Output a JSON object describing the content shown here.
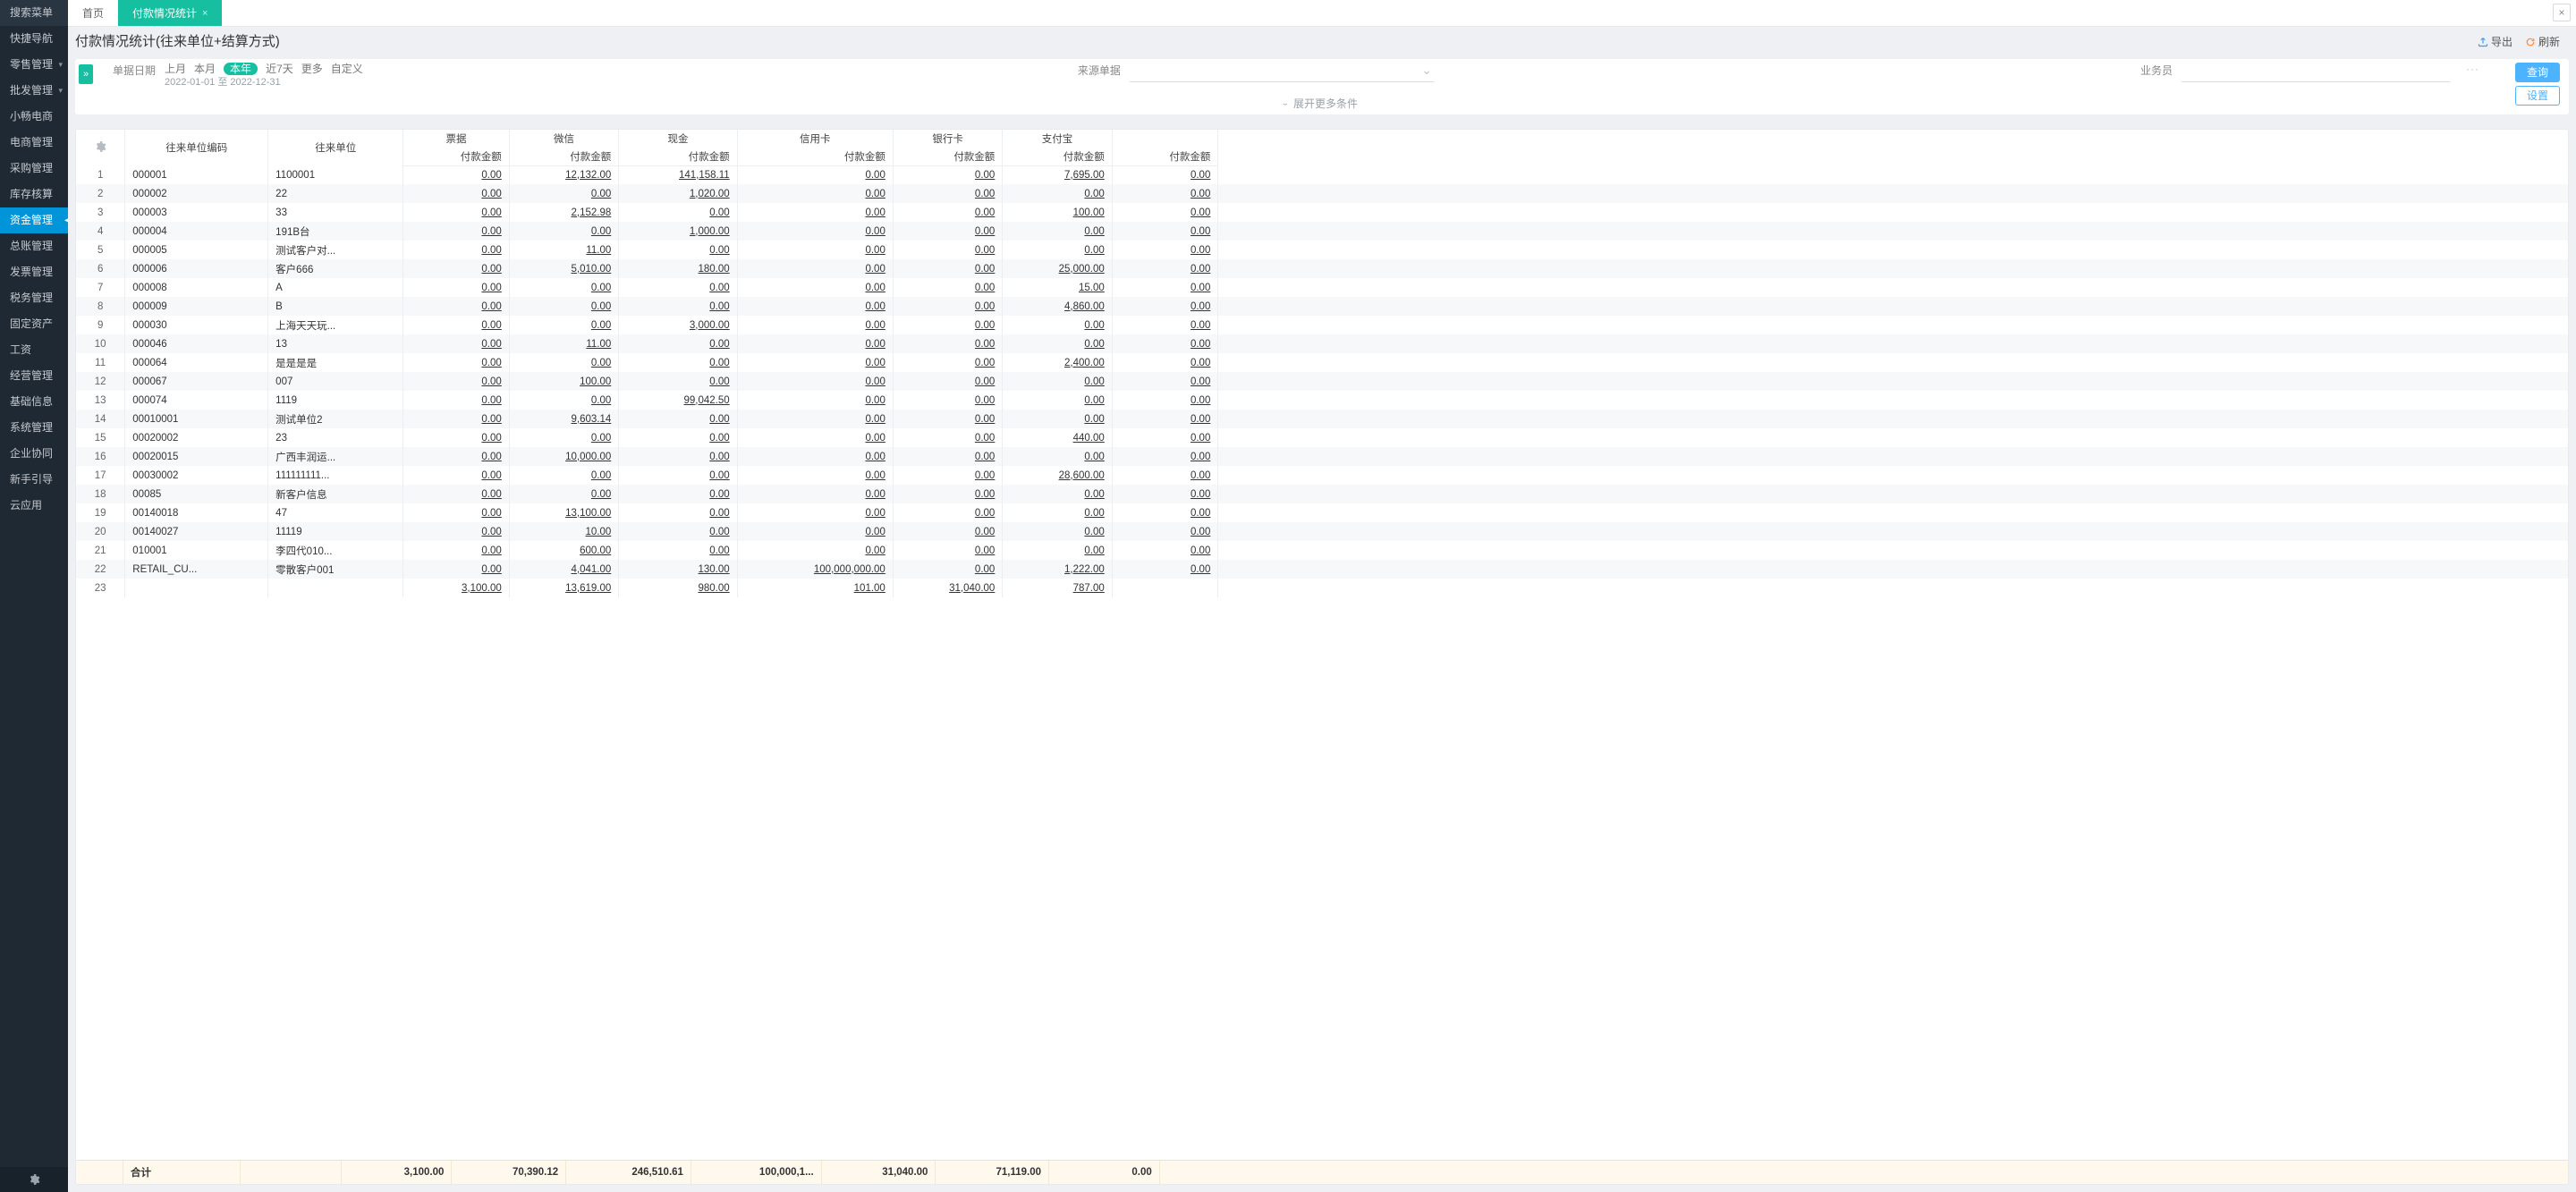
{
  "sidebar": {
    "items": [
      {
        "label": "搜索菜单",
        "expand": false
      },
      {
        "label": "快捷导航",
        "expand": false
      },
      {
        "label": "零售管理",
        "expand": true
      },
      {
        "label": "批发管理",
        "expand": true
      },
      {
        "label": "小畅电商",
        "expand": false
      },
      {
        "label": "电商管理",
        "expand": false
      },
      {
        "label": "采购管理",
        "expand": false
      },
      {
        "label": "库存核算",
        "expand": false
      },
      {
        "label": "资金管理",
        "expand": false,
        "active": true
      },
      {
        "label": "总账管理",
        "expand": false
      },
      {
        "label": "发票管理",
        "expand": false
      },
      {
        "label": "税务管理",
        "expand": false
      },
      {
        "label": "固定资产",
        "expand": false
      },
      {
        "label": "工资",
        "expand": false
      },
      {
        "label": "经营管理",
        "expand": false
      },
      {
        "label": "基础信息",
        "expand": false
      },
      {
        "label": "系统管理",
        "expand": false
      },
      {
        "label": "企业协同",
        "expand": false
      },
      {
        "label": "新手引导",
        "expand": false
      },
      {
        "label": "云应用",
        "expand": false
      }
    ]
  },
  "tabs": [
    {
      "label": "首页",
      "closable": false
    },
    {
      "label": "付款情况统计",
      "closable": true,
      "active": true
    }
  ],
  "page": {
    "title": "付款情况统计(往来单位+结算方式)",
    "actions": {
      "export": "导出",
      "refresh": "刷新"
    }
  },
  "filters": {
    "dateLabel": "单据日期",
    "dateLinks": [
      "上月",
      "本月",
      "本年",
      "近7天",
      "更多",
      "自定义"
    ],
    "dateLinksSelected": 2,
    "dateRange": "2022-01-01 至 2022-12-31",
    "sourceLabel": "来源单据",
    "staffLabel": "业务员",
    "queryBtn": "查询",
    "settingsBtn": "设置",
    "expandText": "展开更多条件"
  },
  "columns": {
    "gear": "",
    "code": "往来单位编码",
    "name": "往来单位",
    "groupLabels": [
      "票据",
      "微信",
      "现金",
      "信用卡",
      "银行卡",
      "支付宝",
      ""
    ],
    "amountLabel": "付款金额"
  },
  "rows": [
    {
      "code": "000001",
      "name": "1100001",
      "v": [
        "0.00",
        "12,132.00",
        "141,158.11",
        "0.00",
        "0.00",
        "7,695.00",
        "0.00"
      ]
    },
    {
      "code": "000002",
      "name": "22",
      "v": [
        "0.00",
        "0.00",
        "1,020.00",
        "0.00",
        "0.00",
        "0.00",
        "0.00"
      ]
    },
    {
      "code": "000003",
      "name": "33",
      "v": [
        "0.00",
        "2,152.98",
        "0.00",
        "0.00",
        "0.00",
        "100.00",
        "0.00"
      ]
    },
    {
      "code": "000004",
      "name": "191B台",
      "v": [
        "0.00",
        "0.00",
        "1,000.00",
        "0.00",
        "0.00",
        "0.00",
        "0.00"
      ]
    },
    {
      "code": "000005",
      "name": "测试客户对...",
      "v": [
        "0.00",
        "11.00",
        "0.00",
        "0.00",
        "0.00",
        "0.00",
        "0.00"
      ]
    },
    {
      "code": "000006",
      "name": "客户666",
      "v": [
        "0.00",
        "5,010.00",
        "180.00",
        "0.00",
        "0.00",
        "25,000.00",
        "0.00"
      ]
    },
    {
      "code": "000008",
      "name": "A",
      "v": [
        "0.00",
        "0.00",
        "0.00",
        "0.00",
        "0.00",
        "15.00",
        "0.00"
      ]
    },
    {
      "code": "000009",
      "name": "B",
      "v": [
        "0.00",
        "0.00",
        "0.00",
        "0.00",
        "0.00",
        "4,860.00",
        "0.00"
      ]
    },
    {
      "code": "000030",
      "name": "上海天天玩...",
      "v": [
        "0.00",
        "0.00",
        "3,000.00",
        "0.00",
        "0.00",
        "0.00",
        "0.00"
      ]
    },
    {
      "code": "000046",
      "name": "13",
      "v": [
        "0.00",
        "11.00",
        "0.00",
        "0.00",
        "0.00",
        "0.00",
        "0.00"
      ]
    },
    {
      "code": "000064",
      "name": "是是是是",
      "v": [
        "0.00",
        "0.00",
        "0.00",
        "0.00",
        "0.00",
        "2,400.00",
        "0.00"
      ]
    },
    {
      "code": "000067",
      "name": "007",
      "v": [
        "0.00",
        "100.00",
        "0.00",
        "0.00",
        "0.00",
        "0.00",
        "0.00"
      ]
    },
    {
      "code": "000074",
      "name": "1119",
      "v": [
        "0.00",
        "0.00",
        "99,042.50",
        "0.00",
        "0.00",
        "0.00",
        "0.00"
      ]
    },
    {
      "code": "00010001",
      "name": "测试单位2",
      "v": [
        "0.00",
        "9,603.14",
        "0.00",
        "0.00",
        "0.00",
        "0.00",
        "0.00"
      ]
    },
    {
      "code": "00020002",
      "name": "23",
      "v": [
        "0.00",
        "0.00",
        "0.00",
        "0.00",
        "0.00",
        "440.00",
        "0.00"
      ]
    },
    {
      "code": "00020015",
      "name": "广西丰润运...",
      "v": [
        "0.00",
        "10,000.00",
        "0.00",
        "0.00",
        "0.00",
        "0.00",
        "0.00"
      ]
    },
    {
      "code": "00030002",
      "name": "111111111...",
      "v": [
        "0.00",
        "0.00",
        "0.00",
        "0.00",
        "0.00",
        "28,600.00",
        "0.00"
      ]
    },
    {
      "code": "00085",
      "name": "新客户信息",
      "v": [
        "0.00",
        "0.00",
        "0.00",
        "0.00",
        "0.00",
        "0.00",
        "0.00"
      ]
    },
    {
      "code": "00140018",
      "name": "47",
      "v": [
        "0.00",
        "13,100.00",
        "0.00",
        "0.00",
        "0.00",
        "0.00",
        "0.00"
      ]
    },
    {
      "code": "00140027",
      "name": "11119",
      "v": [
        "0.00",
        "10.00",
        "0.00",
        "0.00",
        "0.00",
        "0.00",
        "0.00"
      ]
    },
    {
      "code": "010001",
      "name": "李四代010...",
      "v": [
        "0.00",
        "600.00",
        "0.00",
        "0.00",
        "0.00",
        "0.00",
        "0.00"
      ]
    },
    {
      "code": "RETAIL_CU...",
      "name": "零散客户001",
      "v": [
        "0.00",
        "4,041.00",
        "130.00",
        "100,000,000.00",
        "0.00",
        "1,222.00",
        "0.00"
      ]
    },
    {
      "code": "",
      "name": "",
      "v": [
        "3,100.00",
        "13,619.00",
        "980.00",
        "101.00",
        "31,040.00",
        "787.00",
        ""
      ]
    }
  ],
  "totalLabel": "合计",
  "totals": [
    "3,100.00",
    "70,390.12",
    "246,510.61",
    "100,000,1...",
    "31,040.00",
    "71,119.00",
    "0.00"
  ]
}
